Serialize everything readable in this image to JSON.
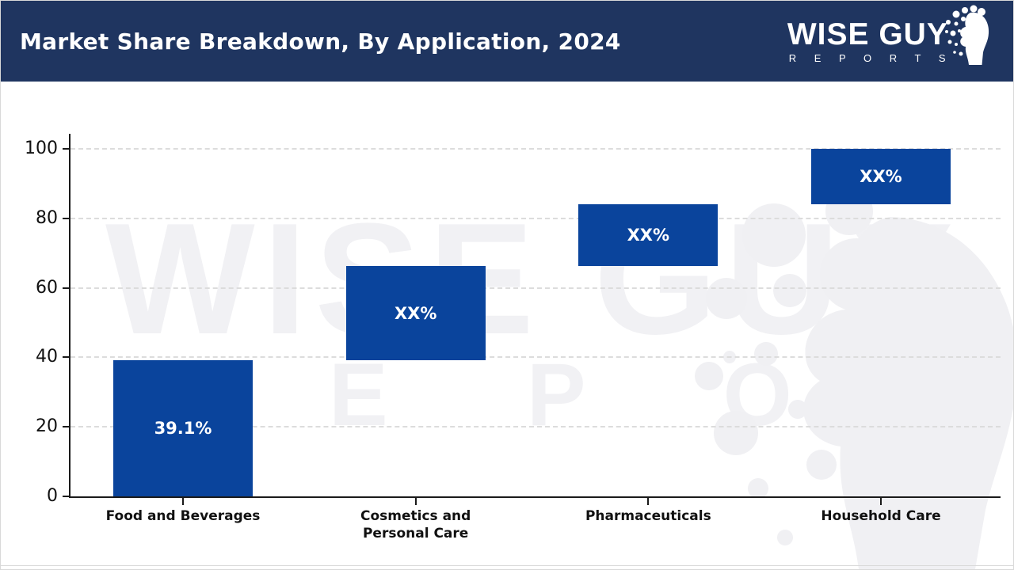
{
  "header": {
    "title": "Market Share Breakdown, By Application, 2024",
    "bg_color": "#1f3560",
    "logo": {
      "line1": "WISE GUY",
      "line2": "R E P O R T S"
    }
  },
  "watermark": {
    "line1": "WISE GUY",
    "line2": "R E P O R T S"
  },
  "chart_data": {
    "type": "bar",
    "variant": "floating-waterfall",
    "title": "Market Share Breakdown, By Application, 2024",
    "categories": [
      "Food and Beverages",
      "Cosmetics and Personal Care",
      "Pharmaceuticals",
      "Household Care"
    ],
    "bars": [
      {
        "category": "Food and Beverages",
        "start": 0,
        "end": 39.1,
        "value": 39.1,
        "label": "39.1%"
      },
      {
        "category": "Cosmetics and Personal Care",
        "start": 39.1,
        "end": 66.2,
        "value": 27.1,
        "label": "XX%"
      },
      {
        "category": "Pharmaceuticals",
        "start": 66.2,
        "end": 84.1,
        "value": 17.9,
        "label": "XX%"
      },
      {
        "category": "Household Care",
        "start": 84.1,
        "end": 100,
        "value": 15.9,
        "label": "XX%"
      }
    ],
    "ylim": [
      0,
      100
    ],
    "yticks": [
      0,
      20,
      40,
      60,
      80,
      100
    ],
    "xlabel": "",
    "ylabel": "",
    "grid": "horizontal-dashed",
    "legend": "none",
    "bar_color": "#0a449c",
    "bar_label_color": "#ffffff",
    "axis_color": "#1a1a1a",
    "grid_color": "#dcdcdc"
  }
}
